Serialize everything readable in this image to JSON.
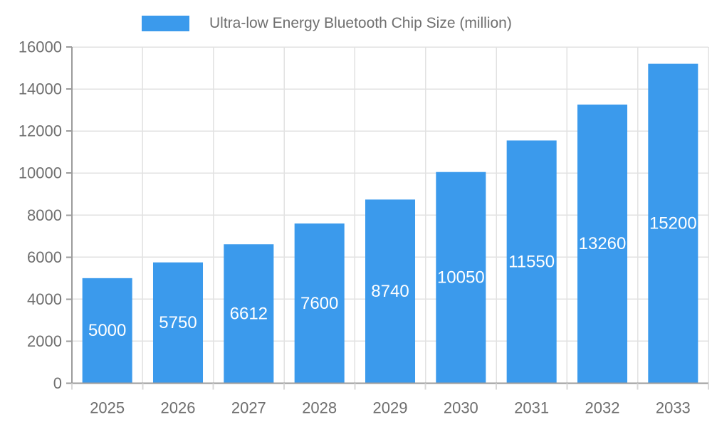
{
  "legend": {
    "label": "Ultra-low Energy Bluetooth Chip Size (million)"
  },
  "chart_data": {
    "type": "bar",
    "title": "",
    "categories": [
      "2025",
      "2026",
      "2027",
      "2028",
      "2029",
      "2030",
      "2031",
      "2032",
      "2033"
    ],
    "series": [
      {
        "name": "Ultra-low Energy Bluetooth Chip Size (million)",
        "values": [
          5000,
          5750,
          6612,
          7600,
          8740,
          10050,
          11550,
          13260,
          15200
        ]
      }
    ],
    "xlabel": "",
    "ylabel": "",
    "ylim": [
      0,
      16000
    ],
    "yticks": [
      0,
      2000,
      4000,
      6000,
      8000,
      10000,
      12000,
      14000,
      16000
    ],
    "grid": true,
    "legend_position": "top-center",
    "value_label_position": "inside-center",
    "colors": {
      "bar": "#3B9AEC",
      "value_label": "#FFFFFF",
      "axis_label": "#6F6F6F",
      "grid_line": "#E2E2E2",
      "axis_line": "#9B9B9B",
      "x_tick_line": "#D8D8D8"
    }
  }
}
